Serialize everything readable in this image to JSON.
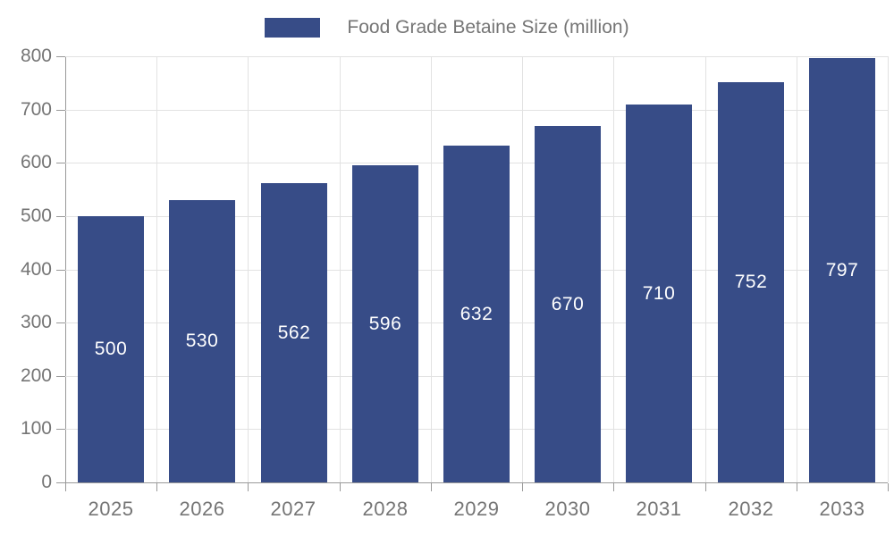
{
  "legend": {
    "label": "Food Grade Betaine Size (million)"
  },
  "chart_data": {
    "type": "bar",
    "title": "",
    "xlabel": "",
    "ylabel": "",
    "categories": [
      "2025",
      "2026",
      "2027",
      "2028",
      "2029",
      "2030",
      "2031",
      "2032",
      "2033"
    ],
    "series": [
      {
        "name": "Food Grade Betaine Size (million)",
        "values": [
          500,
          530,
          562,
          596,
          632,
          670,
          710,
          752,
          797
        ]
      }
    ],
    "ylim": [
      0,
      800
    ],
    "yticks": [
      0,
      100,
      200,
      300,
      400,
      500,
      600,
      700,
      800
    ],
    "grid": true,
    "legend_position": "top-center",
    "bar_labels_visible": true,
    "colors": {
      "bar": "#374c87",
      "bar_label": "#ffffff",
      "axis_text": "#757575",
      "axis_line": "#999999",
      "grid": "#e2e2e2",
      "background": "#ffffff"
    }
  }
}
